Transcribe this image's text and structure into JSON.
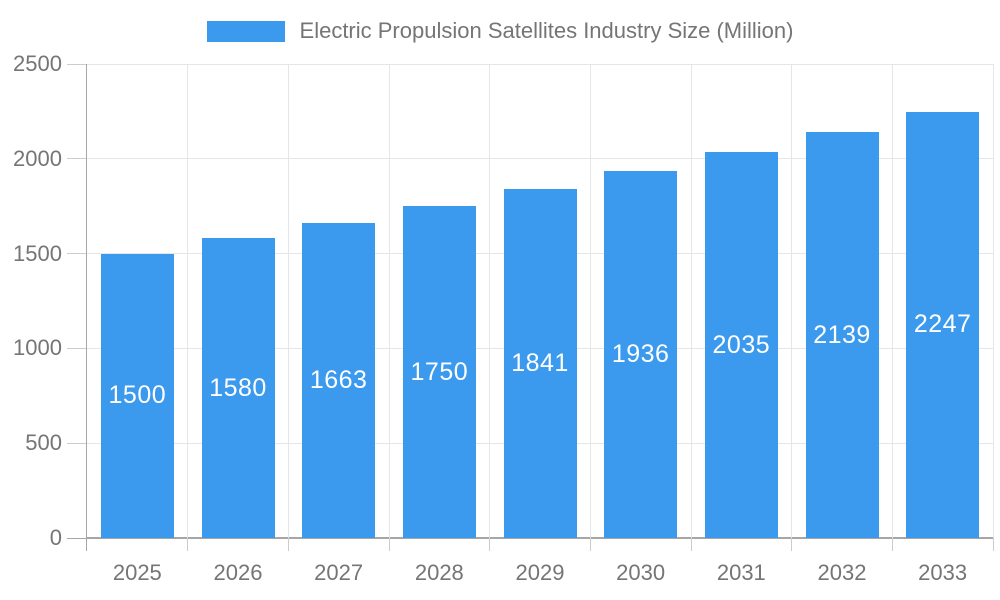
{
  "legend": {
    "label": "Electric Propulsion Satellites Industry Size (Million)",
    "swatch_color": "#3B9AED"
  },
  "chart_data": {
    "type": "bar",
    "title": "Electric Propulsion Satellites Industry Size (Million)",
    "categories": [
      "2025",
      "2026",
      "2027",
      "2028",
      "2029",
      "2030",
      "2031",
      "2032",
      "2033"
    ],
    "values": [
      1500,
      1580,
      1663,
      1750,
      1841,
      1936,
      2035,
      2139,
      2247
    ],
    "series": [
      {
        "name": "Electric Propulsion Satellites Industry Size (Million)",
        "values": [
          1500,
          1580,
          1663,
          1750,
          1841,
          1936,
          2035,
          2139,
          2247
        ]
      }
    ],
    "xlabel": "",
    "ylabel": "",
    "ylim": [
      0,
      2500
    ],
    "yticks": [
      0,
      500,
      1000,
      1500,
      2000,
      2500
    ],
    "grid": true,
    "legend_position": "top-center",
    "value_labels": "inside-center",
    "colors": {
      "bar": "#3B9AED",
      "grid": "#E6E6E6",
      "axis": "#A6A6A6",
      "tick": "#CCCCCC",
      "axis_text": "#757575",
      "value_label_text": "#FFFFFF",
      "background": "#FFFFFF"
    }
  }
}
